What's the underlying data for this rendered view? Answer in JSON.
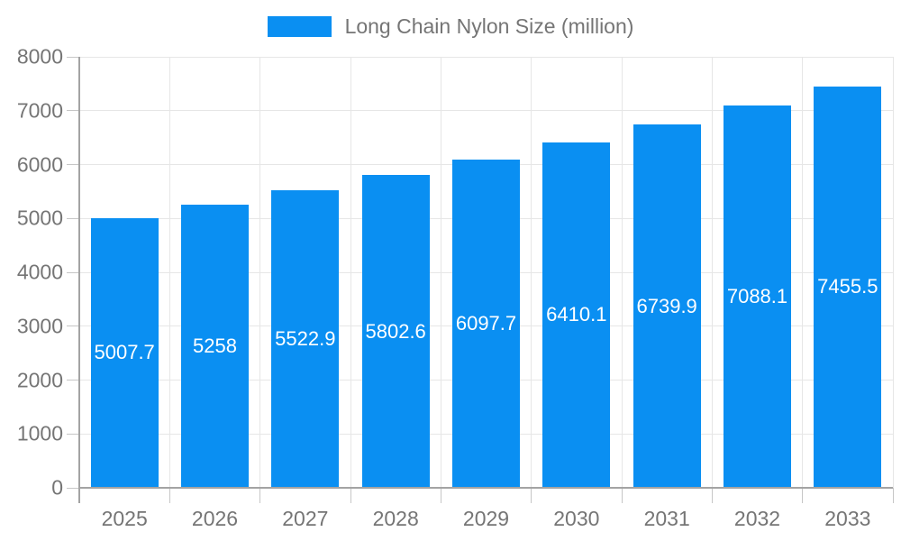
{
  "legend": {
    "label": "Long Chain Nylon Size (million)"
  },
  "chart_data": {
    "type": "bar",
    "title": "",
    "xlabel": "",
    "ylabel": "",
    "categories": [
      "2025",
      "2026",
      "2027",
      "2028",
      "2029",
      "2030",
      "2031",
      "2032",
      "2033"
    ],
    "values": [
      5007.7,
      5258,
      5522.9,
      5802.6,
      6097.7,
      6410.1,
      6739.9,
      7088.1,
      7455.5
    ],
    "value_labels": [
      "5007.7",
      "5258",
      "5522.9",
      "5802.6",
      "6097.7",
      "6410.1",
      "6739.9",
      "7088.1",
      "7455.5"
    ],
    "series_name": "Long Chain Nylon Size (million)",
    "ylim": [
      0,
      8000
    ],
    "ytick_step": 1000,
    "ytick_labels": [
      "0",
      "1000",
      "2000",
      "3000",
      "4000",
      "5000",
      "6000",
      "7000",
      "8000"
    ],
    "grid": true,
    "legend_position": "top",
    "colors": {
      "bar": "#0a8ff2",
      "value_label": "#ffffff",
      "axis_text": "#757575",
      "legend_text": "#757575",
      "gridline": "#e6e6e6",
      "tick": "#c6c6c6",
      "axis_line": "#a3a3a3",
      "background": "#ffffff"
    }
  }
}
